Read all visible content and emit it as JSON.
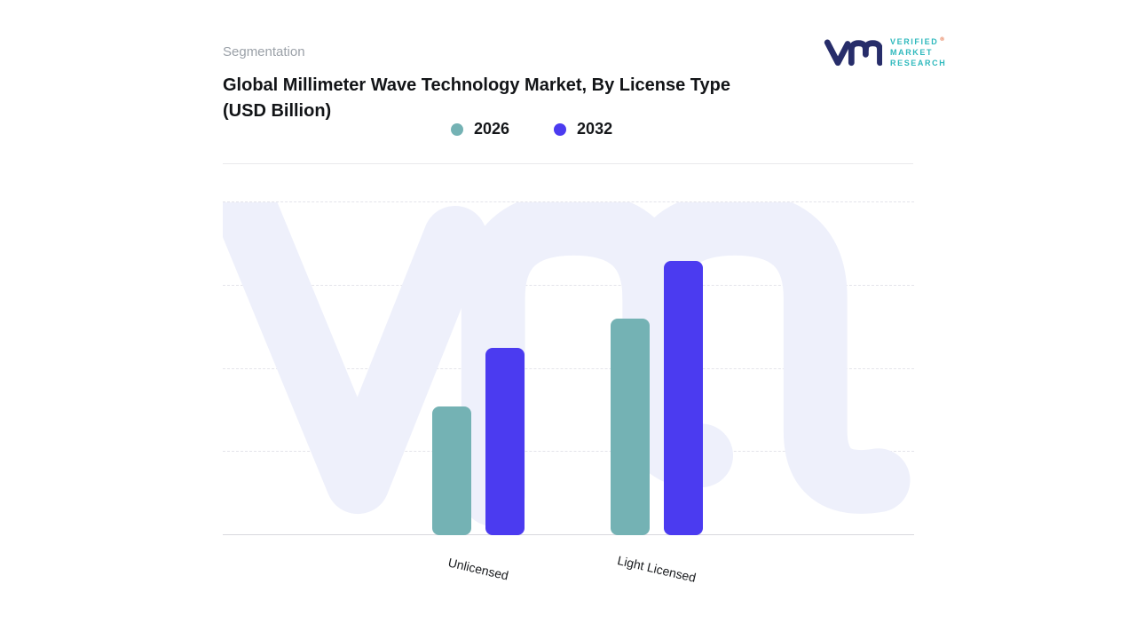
{
  "page": {
    "section_label": "Segmentation"
  },
  "title": {
    "line1": "Global Millimeter Wave Technology Market, By License Type",
    "line2": "(USD Billion)"
  },
  "logo": {
    "lines": [
      "VERIFIED",
      "MARKET",
      "RESEARCH"
    ],
    "registered": "®",
    "navy": "#272d6a",
    "teal": "#2fb9bd"
  },
  "colors": {
    "series_2026": "#74b2b4",
    "series_2032": "#4b3bf0",
    "watermark": "#eef0fb",
    "grid": "#e4e4ea",
    "baseline": "#d9d9de",
    "muted_text": "#9ba1a8"
  },
  "chart_data": {
    "type": "bar",
    "title": "Global Millimeter Wave Technology Market, By License Type (USD Billion)",
    "categories": [
      "Unlicensed",
      "Light Licensed"
    ],
    "series": [
      {
        "name": "2026",
        "color": "#74b2b4",
        "values": [
          1.55,
          2.6
        ]
      },
      {
        "name": "2032",
        "color": "#4b3bf0",
        "values": [
          2.25,
          3.3
        ]
      }
    ],
    "xlabel": "",
    "ylabel": "",
    "ylim": [
      0,
      4
    ],
    "grid": "horizontal-dashed",
    "gridline_step": 1,
    "y_axis_labels_visible": false,
    "value_labels": false,
    "legend_position": "top-center",
    "x_label_rotation_deg": 13
  }
}
